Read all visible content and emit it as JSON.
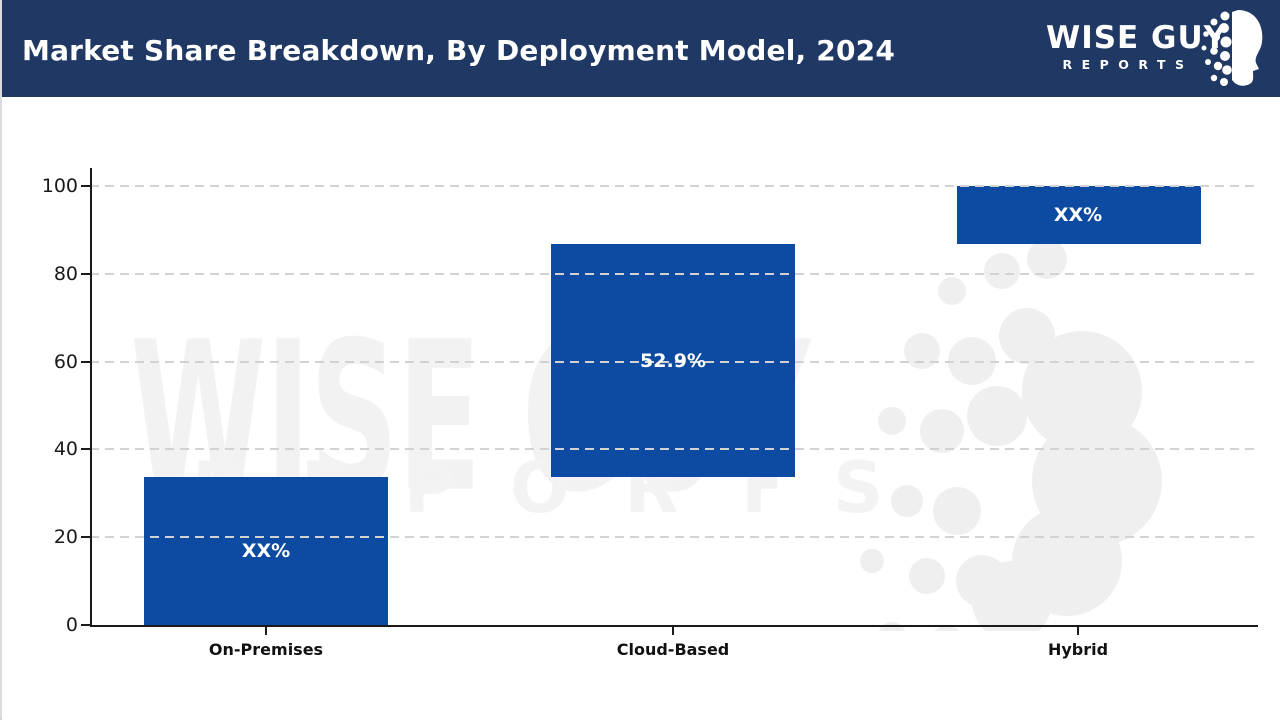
{
  "header": {
    "title": "Market Share Breakdown, By Deployment Model, 2024",
    "background": "#203864",
    "logo": {
      "line1": "WISE GUY",
      "line2": "REPORTS"
    }
  },
  "watermark": {
    "line1": "WISE GUY",
    "line2": "REPORTS"
  },
  "chart_data": {
    "type": "bar",
    "subtype": "floating-waterfall",
    "title": "Market Share Breakdown, By Deployment Model, 2024",
    "categories": [
      "On-Premises",
      "Cloud-Based",
      "Hybrid"
    ],
    "segments": [
      {
        "category": "On-Premises",
        "start": 0,
        "end": 33.8,
        "value": 33.8,
        "label": "XX%"
      },
      {
        "category": "Cloud-Based",
        "start": 33.8,
        "end": 86.7,
        "value": 52.9,
        "label": "52.9%"
      },
      {
        "category": "Hybrid",
        "start": 86.7,
        "end": 100,
        "value": 13.3,
        "label": "XX%"
      }
    ],
    "xlabel": "",
    "ylabel": "",
    "ylim": [
      0,
      100
    ],
    "yticks": [
      0,
      20,
      40,
      60,
      80,
      100
    ],
    "grid": "horizontal-dashed",
    "legend": "none",
    "bar_color": "#0D4AA1",
    "bar_label_color": "#ffffff",
    "axis_color": "#1a1a1a",
    "gridline_color": "#d2d2d2"
  }
}
